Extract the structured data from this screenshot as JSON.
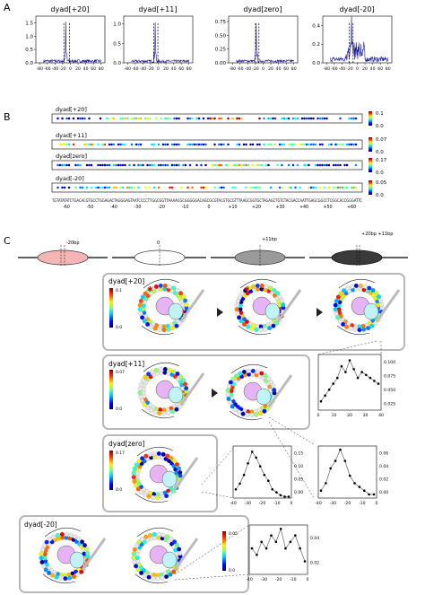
{
  "panels": {
    "a": "A",
    "b": "B",
    "c": "C"
  },
  "panel_a": {
    "subplots": [
      {
        "title": "dyad[+20]",
        "yticks": [
          "0.0",
          "0.5",
          "1.0",
          "1.5"
        ],
        "ymax": 1.75,
        "peak": 1.55,
        "center": -12,
        "dash1": -17,
        "dash2": -2,
        "noise": 0.14
      },
      {
        "title": "dyad[+11]",
        "yticks": [
          "0.0",
          "0.5",
          "1.0"
        ],
        "ymax": 1.2,
        "peak": 1.05,
        "center": -8,
        "dash1": -12,
        "dash2": -1,
        "noise": 0.12
      },
      {
        "title": "dyad[zero]",
        "yticks": [
          "0.00",
          "0.25",
          "0.50",
          "0.75"
        ],
        "ymax": 0.85,
        "peak": 0.72,
        "center": -18,
        "dash1": -20,
        "dash2": -11,
        "noise": 0.12
      },
      {
        "title": "dyad[-20]",
        "yticks": [
          "0.0",
          "0.2",
          "0.4"
        ],
        "ymax": 0.5,
        "peak": 0.44,
        "center": -15,
        "dash1": -21,
        "dash2": -11,
        "noise": 0.25
      }
    ],
    "xticks": [
      "-80",
      "-60",
      "-40",
      "-20",
      "0",
      "20",
      "40",
      "60",
      "80"
    ]
  },
  "panel_b": {
    "rows": [
      {
        "title": "dyad[+20]",
        "cb_top": "0.1",
        "cb_bottom": "0.0"
      },
      {
        "title": "dyad[+11]",
        "cb_top": "0.07",
        "cb_bottom": "0.0"
      },
      {
        "title": "dyad[zero]",
        "cb_top": "0.17",
        "cb_bottom": "0.0"
      },
      {
        "title": "dyad[-20]",
        "cb_top": "0.05",
        "cb_bottom": "0.0"
      }
    ],
    "sequence": "TGTATATATCTGACACGTGCCTGGAGACTAGGGAGTAATCCCCTTGGCGGTTAAAACGCGGGGGACAGCGCGTACGTGCGTTTAAGCGGTGCTAGAGCTGTCTACGACCAATTGAGCGGCCTCGGCACCGGGATTC",
    "pos_labels": [
      "-60",
      "-50",
      "-40",
      "-30",
      "-20",
      "-10",
      "0",
      "+10",
      "+20",
      "+30",
      "+40",
      "+50",
      "+60"
    ]
  },
  "panel_c": {
    "nuc_labels": [
      "-20bp",
      "0",
      "+11bp",
      "+20bp\n+11bp"
    ],
    "groups": [
      {
        "title": "dyad[+20]",
        "cb_top": "0.1",
        "cb_bottom": "0.0"
      },
      {
        "title": "dyad[+11]",
        "cb_top": "0.07",
        "cb_bottom": "0.0"
      },
      {
        "title": "dyad[zero]",
        "cb_top": "0.17",
        "cb_bottom": "0.0"
      },
      {
        "title": "dyad[-20]",
        "cb_top": "0.05",
        "cb_bottom": "0.0"
      }
    ],
    "insets": [
      {
        "xticks": [
          "0",
          "10",
          "20",
          "30",
          "40"
        ],
        "yticks": [
          "0.025",
          "0.050",
          "0.075",
          "0.100"
        ]
      },
      {
        "xticks": [
          "-40",
          "-30",
          "-20",
          "-10",
          "0"
        ],
        "yticks": [
          "0.00",
          "0.05",
          "0.10",
          "0.15"
        ]
      },
      {
        "xticks": [
          "-40",
          "-30",
          "-20",
          "-10",
          "0"
        ],
        "yticks": [
          "0.00",
          "0.02",
          "0.04",
          "0.06"
        ]
      },
      {
        "xticks": [
          "-40",
          "-30",
          "-20",
          "-10",
          "0"
        ],
        "yticks": [
          "0.02",
          "0.04"
        ]
      }
    ]
  },
  "colors": {
    "trace": "#1a1a9a",
    "border": "#b8b8b8",
    "red_nuc": "#f3b5b5",
    "histone": "#e6b3f5",
    "cyan": "#bff3f5"
  }
}
